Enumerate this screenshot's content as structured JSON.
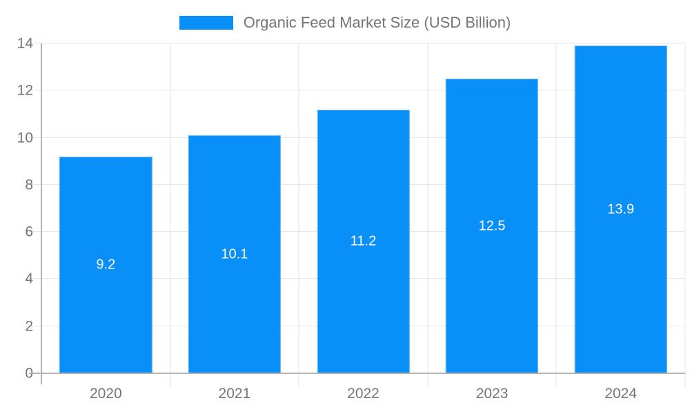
{
  "legend": {
    "label": "Organic Feed Market Size (USD Billion)"
  },
  "chart_data": {
    "type": "bar",
    "title": "Organic Feed Market Size (USD Billion)",
    "categories": [
      "2020",
      "2021",
      "2022",
      "2023",
      "2024"
    ],
    "values": [
      9.2,
      10.1,
      11.2,
      12.5,
      13.9
    ],
    "value_labels": [
      "9.2",
      "10.1",
      "11.2",
      "12.5",
      "13.9"
    ],
    "xlabel": "",
    "ylabel": "",
    "ylim": [
      0,
      14
    ],
    "yticks": [
      0,
      2,
      4,
      6,
      8,
      10,
      12,
      14
    ],
    "grid": true,
    "legend_position": "top",
    "colors": {
      "bar": "#0890f8",
      "bar_border": "#7ebcf2",
      "grid": "#e6e6e6",
      "axis": "#b3b3b3",
      "axis_text": "#757575",
      "value_label": "#ffffff",
      "legend_text": "#757575"
    }
  }
}
